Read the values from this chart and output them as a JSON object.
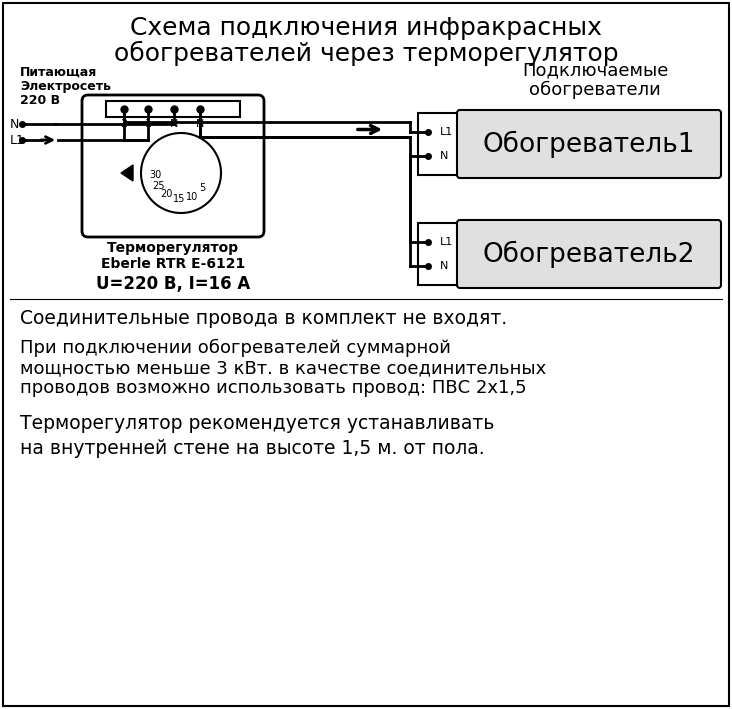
{
  "title_line1": "Схема подключения инфракрасных",
  "title_line2": "обогревателей через терморегулятор",
  "title_fontsize": 18,
  "bg_color": "#ffffff",
  "border_color": "#000000",
  "text_color": "#000000",
  "power_label_line1": "Питающая",
  "power_label_line2": "Электросеть",
  "power_label_line3": "220 В",
  "connect_label_line1": "Подключаемые",
  "connect_label_line2": "обогреватели",
  "heater1_label": "Обогреватель1",
  "heater2_label": "Обогреватель2",
  "thermostat_label_line1": "Терморегулятор",
  "thermostat_label_line2": "Eberle RTR E-6121",
  "thermostat_label_line3": "U=220 В, I=16 А",
  "info_line1": "Соединительные провода в комплект не входят.",
  "info_line2_1": "При подключении обогревателей суммарной",
  "info_line2_2": "мощностью меньше 3 кВт. в качестве соединительных",
  "info_line2_3": "проводов возможно использовать провод: ПВС 2х1,5",
  "info_line3_1": "Терморегулятор рекомендуется устанавливать",
  "info_line3_2": "на внутренней стене на высоте 1,5 м. от пола.",
  "figsize": [
    7.32,
    7.09
  ],
  "dpi": 100
}
